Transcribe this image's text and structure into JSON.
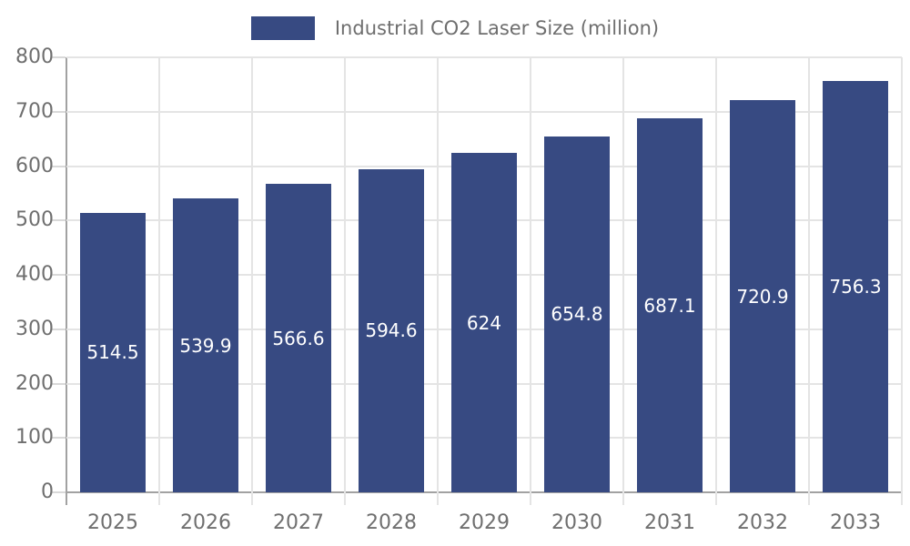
{
  "legend": {
    "label": "Industrial CO2 Laser Size (million)"
  },
  "chart_data": {
    "type": "bar",
    "title": "Industrial CO2 Laser Size (million)",
    "categories": [
      "2025",
      "2026",
      "2027",
      "2028",
      "2029",
      "2030",
      "2031",
      "2032",
      "2033"
    ],
    "values": [
      514.5,
      539.9,
      566.6,
      594.6,
      624,
      654.8,
      687.1,
      720.9,
      756.3
    ],
    "value_labels": [
      "514.5",
      "539.9",
      "566.6",
      "594.6",
      "624",
      "654.8",
      "687.1",
      "720.9",
      "756.3"
    ],
    "xlabel": "",
    "ylabel": "",
    "ylim": [
      0,
      800
    ],
    "ytick_step": 100,
    "ytick_labels": [
      "0",
      "100",
      "200",
      "300",
      "400",
      "500",
      "600",
      "700",
      "800"
    ],
    "grid": true,
    "legend_position": "top-center",
    "bar_color": "#374a82",
    "bar_value_label_color": "#ffffff",
    "axis_text_color": "#6f6f6f",
    "legend_text_color": "#6e6e6e",
    "grid_color": "#e4e4e4",
    "axis_line_color": "#a2a2a2",
    "background_color": "#ffffff"
  }
}
